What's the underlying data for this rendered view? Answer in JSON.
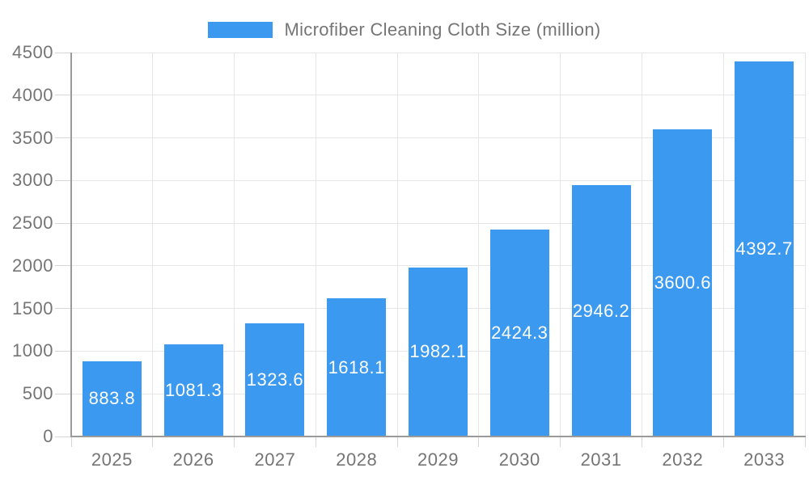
{
  "chart_data": {
    "type": "bar",
    "title": "",
    "legend_position": "top",
    "bar_label_position": "inside-center",
    "grid": true,
    "categories": [
      "2025",
      "2026",
      "2027",
      "2028",
      "2029",
      "2030",
      "2031",
      "2032",
      "2033"
    ],
    "series": [
      {
        "name": "Microfiber Cleaning Cloth Size (million)",
        "values": [
          883.8,
          1081.3,
          1323.6,
          1618.1,
          1982.1,
          2424.3,
          2946.2,
          3600.6,
          4392.7
        ]
      }
    ],
    "xlabel": "",
    "ylabel": "",
    "ylim": [
      0,
      4500
    ],
    "yticks": [
      0,
      500,
      1000,
      1500,
      2000,
      2500,
      3000,
      3500,
      4000,
      4500
    ],
    "colors": {
      "bar": "#3B99EF",
      "bar_label": "#ffffff",
      "axis_label": "#757575",
      "legend_text": "#757575",
      "gridline": "#e6e6e6",
      "tick": "#d6d6d6",
      "axis_line": "#9a9a9a",
      "background": "#ffffff"
    }
  }
}
